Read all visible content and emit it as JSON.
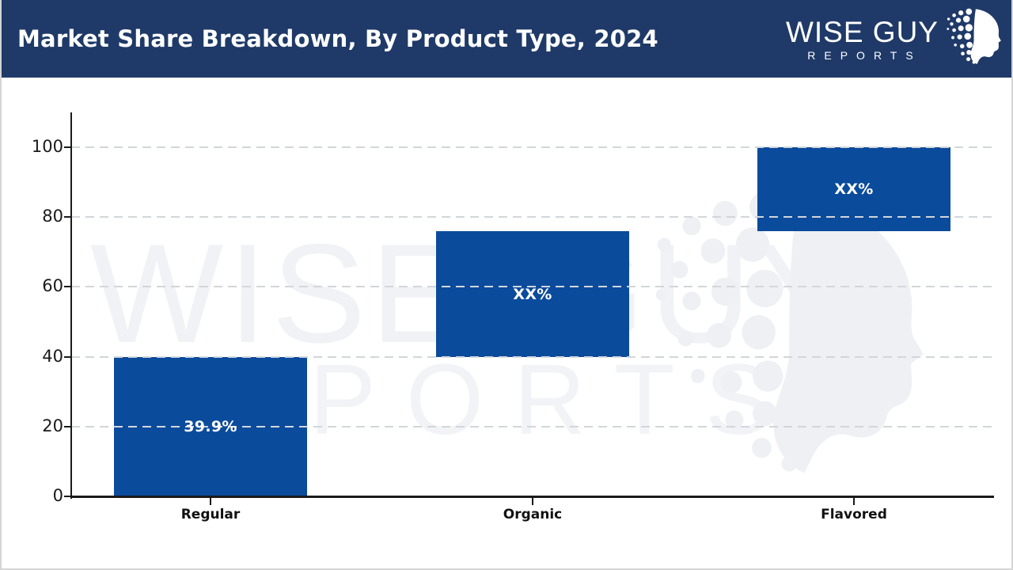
{
  "header": {
    "title": "Market Share Breakdown, By Product Type, 2024"
  },
  "logo": {
    "name": "WISE GUY",
    "subtitle": "REPORTS"
  },
  "watermark": {
    "line1": "WISE GUY",
    "line2": "REPORTS"
  },
  "chart_data": {
    "type": "bar",
    "subtype": "floating_waterfall_market_share",
    "title": "Market Share Breakdown, By Product Type, 2024",
    "categories": [
      "Regular",
      "Organic",
      "Flavored"
    ],
    "segments": [
      {
        "category": "Regular",
        "start": 0,
        "end": 39.9,
        "label": "39.9%"
      },
      {
        "category": "Organic",
        "start": 39.9,
        "end": 75.9,
        "label": "XX%"
      },
      {
        "category": "Flavored",
        "start": 75.9,
        "end": 100,
        "label": "XX%"
      }
    ],
    "xlabel": "",
    "ylabel": "",
    "ylim": [
      0,
      100
    ],
    "yticks": [
      0,
      20,
      40,
      60,
      80,
      100
    ],
    "grid": {
      "horizontal": true,
      "style": "dashed",
      "above_bars": true
    },
    "legend": "none",
    "bar_color": "#0b4b9c",
    "bar_label_color": "#ffffff"
  },
  "colors": {
    "header_bg": "#1f3a68",
    "bar_fill": "#0b4b9c",
    "axis": "#1a1a1a",
    "gridline": "#d2d6da",
    "watermark": "#f1f2f5",
    "frame_border": "#d5d5d5"
  }
}
